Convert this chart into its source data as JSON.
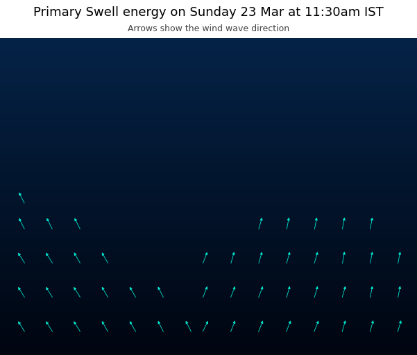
{
  "title": "Primary Swell energy on Sunday 23 Mar at 11:30am IST",
  "subtitle": "Arrows show the wind wave direction",
  "title_fontsize": 13,
  "subtitle_fontsize": 9,
  "fig_width": 6.01,
  "fig_height": 5.12,
  "dpi": 100,
  "map_extent_lon": [
    60,
    105
  ],
  "map_extent_lat": [
    5,
    42
  ],
  "ocean_deep_color": "#000510",
  "ocean_mid_color": "#001535",
  "ocean_shallow_color": "#002255",
  "land_flat_color": "#909090",
  "land_mountain_color": "#c5c5c5",
  "border_color": "#111111",
  "arrow_color": "#00e8d0",
  "arrow_size": 7,
  "title_bg": "#ffffff",
  "arrows": [
    [
      62.5,
      8,
      -30
    ],
    [
      62.5,
      12,
      -30
    ],
    [
      62.5,
      16,
      -30
    ],
    [
      62.5,
      20,
      -25
    ],
    [
      62.5,
      23,
      -25
    ],
    [
      65.5,
      8,
      -30
    ],
    [
      65.5,
      12,
      -30
    ],
    [
      65.5,
      16,
      -30
    ],
    [
      65.5,
      20,
      -25
    ],
    [
      68.5,
      8,
      -30
    ],
    [
      68.5,
      12,
      -30
    ],
    [
      68.5,
      16,
      -28
    ],
    [
      68.5,
      20,
      -25
    ],
    [
      71.5,
      8,
      -28
    ],
    [
      71.5,
      12,
      -28
    ],
    [
      71.5,
      16,
      -28
    ],
    [
      74.5,
      8,
      -28
    ],
    [
      74.5,
      12,
      -28
    ],
    [
      77.5,
      8,
      -25
    ],
    [
      77.5,
      12,
      -25
    ],
    [
      80.5,
      8,
      -25
    ],
    [
      82,
      8,
      25
    ],
    [
      82,
      12,
      20
    ],
    [
      82,
      16,
      20
    ],
    [
      85,
      8,
      20
    ],
    [
      85,
      12,
      20
    ],
    [
      85,
      16,
      15
    ],
    [
      88,
      8,
      20
    ],
    [
      88,
      12,
      20
    ],
    [
      88,
      16,
      15
    ],
    [
      88,
      20,
      15
    ],
    [
      91,
      8,
      20
    ],
    [
      91,
      12,
      15
    ],
    [
      91,
      16,
      15
    ],
    [
      91,
      20,
      10
    ],
    [
      94,
      8,
      20
    ],
    [
      94,
      12,
      15
    ],
    [
      94,
      16,
      15
    ],
    [
      94,
      20,
      10
    ],
    [
      97,
      8,
      15
    ],
    [
      97,
      12,
      15
    ],
    [
      97,
      16,
      10
    ],
    [
      97,
      20,
      10
    ],
    [
      100,
      8,
      15
    ],
    [
      100,
      12,
      10
    ],
    [
      100,
      16,
      10
    ],
    [
      100,
      20,
      10
    ],
    [
      103,
      8,
      15
    ],
    [
      103,
      12,
      10
    ],
    [
      103,
      16,
      10
    ]
  ]
}
